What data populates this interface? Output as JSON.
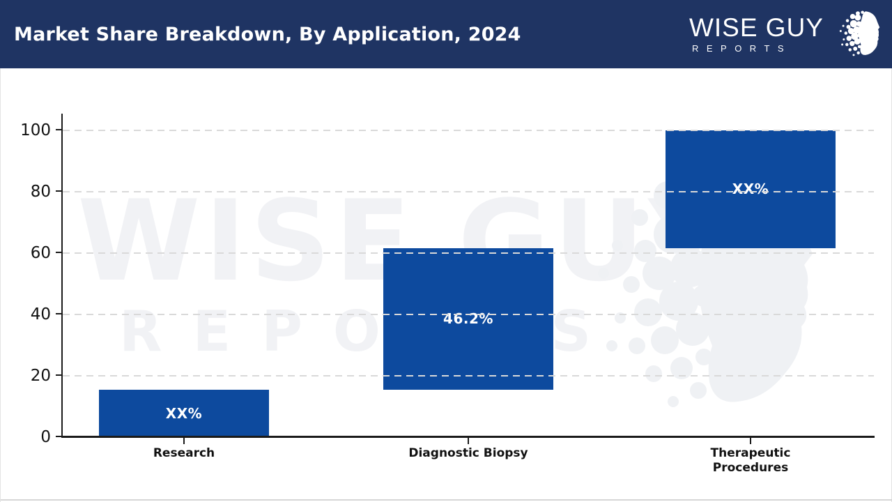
{
  "header": {
    "title": "Market Share Breakdown, By Application, 2024",
    "bg_color": "#1f3463",
    "logo": {
      "line1": "WISE GUY",
      "line2": "REPORTS"
    }
  },
  "watermark": {
    "line1": "WISE GUY",
    "line2": "REPORTS"
  },
  "chart_data": {
    "type": "bar",
    "subtype": "floating segmented percentage bars (stacked breakdown shown as offset blocks)",
    "title": "Market Share Breakdown, By Application, 2024",
    "categories": [
      "Research",
      "Diagnostic Biopsy",
      "Therapeutic Procedures"
    ],
    "series": [
      {
        "category": "Research",
        "segment_start": 0,
        "segment_end": 15.5,
        "value_label": "XX%"
      },
      {
        "category": "Diagnostic Biopsy",
        "segment_start": 15.5,
        "segment_end": 61.7,
        "value_label": "46.2%"
      },
      {
        "category": "Therapeutic Procedures",
        "segment_start": 61.7,
        "segment_end": 100,
        "value_label": "XX%"
      }
    ],
    "xlabel": "",
    "ylabel": "",
    "yticks": [
      0,
      20,
      40,
      60,
      80,
      100
    ],
    "ylim": [
      0,
      105
    ],
    "grid": "horizontal dashed",
    "legend": "none",
    "bar_color": "#0d4a9e",
    "axis_color": "#1a1a1a",
    "gridline_color": "#d9d9d9"
  }
}
